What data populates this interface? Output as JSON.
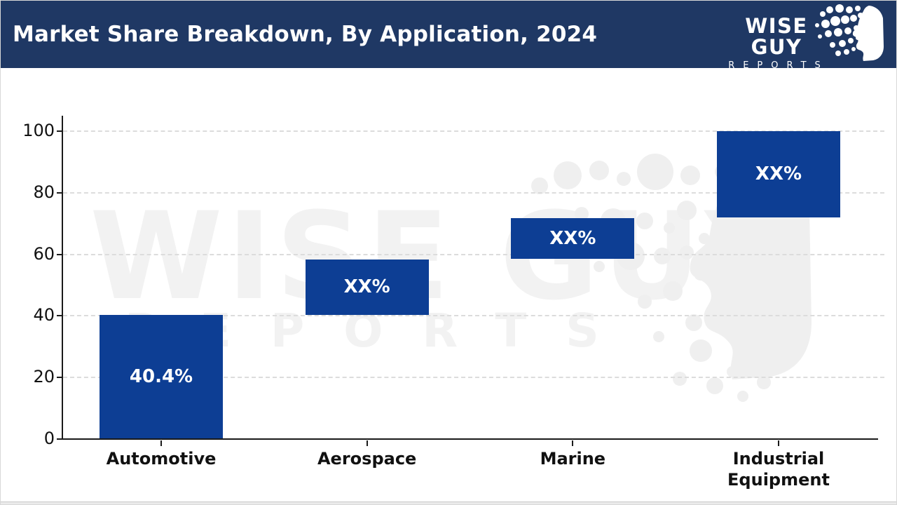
{
  "header": {
    "title": "Market Share Breakdown, By Application, 2024",
    "bg_color": "#1f3864",
    "logo": {
      "wordmark": "WISE GUY",
      "subtext": "REPORTS"
    }
  },
  "watermark": {
    "wordmark": "WISE GUY",
    "subtext": "REPORTS"
  },
  "chart_data": {
    "type": "bar",
    "subtype": "waterfall",
    "title": "Market Share Breakdown, By Application, 2024",
    "categories": [
      "Automotive",
      "Aerospace",
      "Marine",
      "Industrial Equipment"
    ],
    "bars": [
      {
        "category": "Automotive",
        "start": 0,
        "end": 40.4,
        "value": 40.4,
        "label": "40.4%"
      },
      {
        "category": "Aerospace",
        "start": 40.4,
        "end": 58.4,
        "value": 18.0,
        "label": "XX%"
      },
      {
        "category": "Marine",
        "start": 58.6,
        "end": 71.8,
        "value": 13.2,
        "label": "XX%"
      },
      {
        "category": "Industrial Equipment",
        "start": 72.0,
        "end": 100.0,
        "value": 28.0,
        "label": "XX%"
      }
    ],
    "xlabel": "",
    "ylabel": "",
    "ylim": [
      0,
      105
    ],
    "yticks": [
      0,
      20,
      40,
      60,
      80,
      100
    ],
    "grid": "horizontal-dashed",
    "grid_color": "#dcdcdc",
    "bar_color": "#0d3e94",
    "bar_label_color": "#ffffff",
    "axis_color": "#1a1a1a",
    "legend": null
  }
}
